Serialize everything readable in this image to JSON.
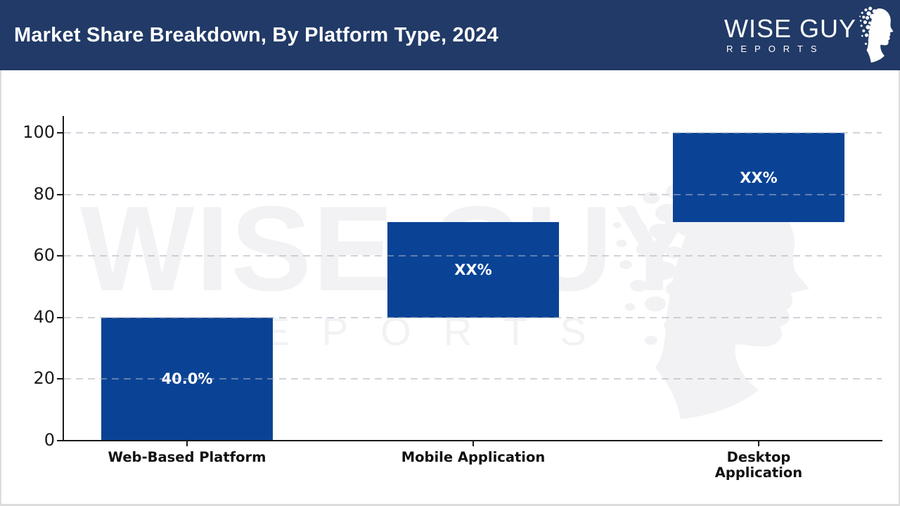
{
  "header": {
    "title": "Market Share Breakdown, By Platform Type, 2024",
    "logo": {
      "line1": "WISE GUY",
      "line2": "REPORTS"
    }
  },
  "watermark": {
    "line1": "WISE GUY",
    "line2": "REPORTS"
  },
  "colors": {
    "header_bg": "#213a67",
    "bar": "#0a4396",
    "axis": "#1a1a1a",
    "gridline": "#d9d9d9",
    "bar_label": "#ffffff",
    "watermark": "#f2f2f4"
  },
  "chart_data": {
    "type": "bar",
    "subtype": "floating-segment breakdown (waterfall-style market share)",
    "title": "Market Share Breakdown, By Platform Type, 2024",
    "categories": [
      "Web-Based Platform",
      "Mobile Application",
      "Desktop\nApplication"
    ],
    "segments": [
      {
        "category": "Web-Based Platform",
        "start": 0,
        "end": 40,
        "label": "40.0%"
      },
      {
        "category": "Mobile Application",
        "start": 40,
        "end": 71,
        "label": "XX%"
      },
      {
        "category": "Desktop Application",
        "start": 71,
        "end": 100,
        "label": "XX%"
      }
    ],
    "xlabel": "",
    "ylabel": "",
    "ylim": [
      0,
      100
    ],
    "yticks": [
      0,
      20,
      40,
      60,
      80,
      100
    ],
    "grid": "horizontal dashed, drawn over bars",
    "legend": "none"
  }
}
